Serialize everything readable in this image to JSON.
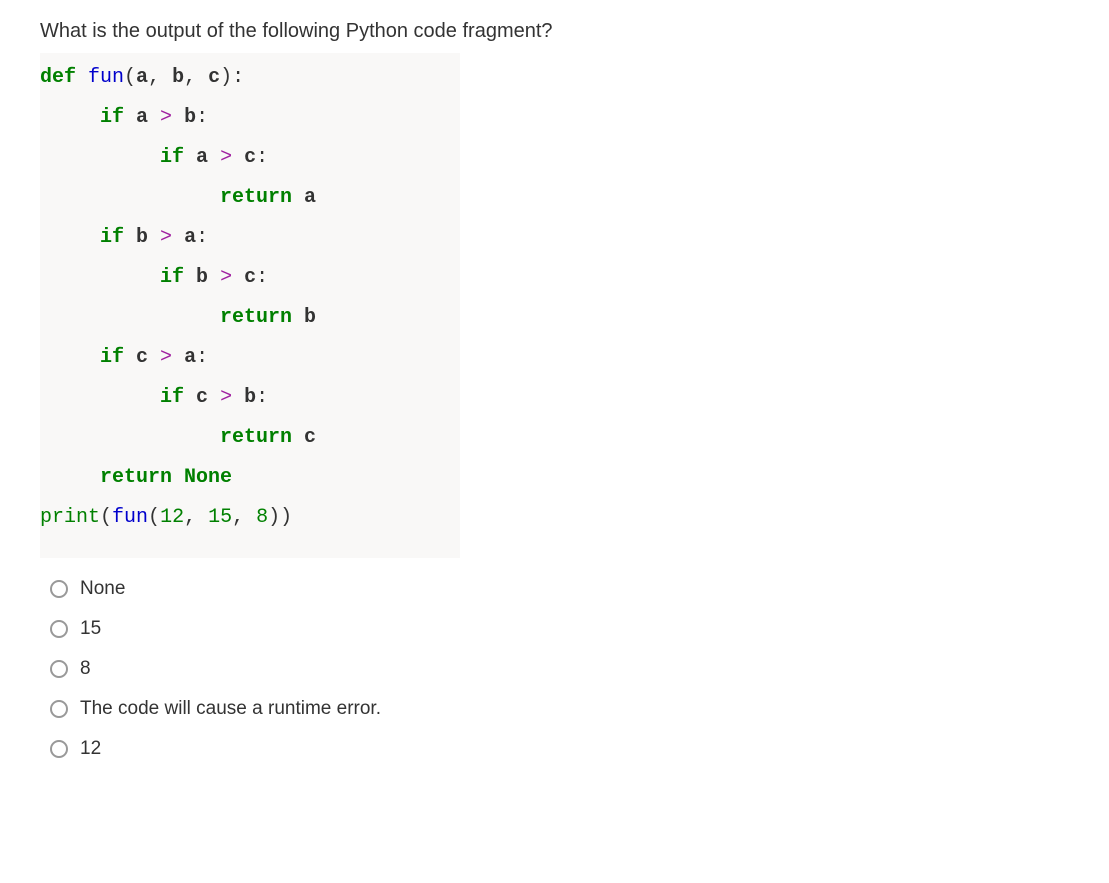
{
  "question": {
    "prompt": "What is the output of the following Python code fragment?"
  },
  "code": {
    "background": "#f9f8f7",
    "font_family": "Courier New",
    "font_size_pt": 15,
    "colors": {
      "keyword": "#008000",
      "function": "#0000cc",
      "operator": "#a020a0",
      "text": "#333333",
      "number": "#008000"
    },
    "lines": [
      {
        "indent": 0,
        "tokens": [
          {
            "t": "def ",
            "c": "keyword",
            "bold": true
          },
          {
            "t": "fun",
            "c": "function"
          },
          {
            "t": "(",
            "c": "punct"
          },
          {
            "t": "a",
            "c": "param",
            "bold": true
          },
          {
            "t": ", ",
            "c": "punct"
          },
          {
            "t": "b",
            "c": "param",
            "bold": true
          },
          {
            "t": ", ",
            "c": "punct"
          },
          {
            "t": "c",
            "c": "param",
            "bold": true
          },
          {
            "t": "):",
            "c": "punct"
          }
        ]
      },
      {
        "indent": 1,
        "tokens": [
          {
            "t": "if ",
            "c": "keyword",
            "bold": true
          },
          {
            "t": "a ",
            "c": "param",
            "bold": true
          },
          {
            "t": "> ",
            "c": "operator"
          },
          {
            "t": "b",
            "c": "param",
            "bold": true
          },
          {
            "t": ":",
            "c": "punct"
          }
        ]
      },
      {
        "indent": 2,
        "tokens": [
          {
            "t": "if ",
            "c": "keyword",
            "bold": true
          },
          {
            "t": "a ",
            "c": "param",
            "bold": true
          },
          {
            "t": "> ",
            "c": "operator"
          },
          {
            "t": "c",
            "c": "param",
            "bold": true
          },
          {
            "t": ":",
            "c": "punct"
          }
        ]
      },
      {
        "indent": 3,
        "tokens": [
          {
            "t": "return ",
            "c": "keyword",
            "bold": true
          },
          {
            "t": "a",
            "c": "param",
            "bold": true
          }
        ]
      },
      {
        "indent": 1,
        "tokens": [
          {
            "t": "if ",
            "c": "keyword",
            "bold": true
          },
          {
            "t": "b ",
            "c": "param",
            "bold": true
          },
          {
            "t": "> ",
            "c": "operator"
          },
          {
            "t": "a",
            "c": "param",
            "bold": true
          },
          {
            "t": ":",
            "c": "punct"
          }
        ]
      },
      {
        "indent": 2,
        "tokens": [
          {
            "t": "if ",
            "c": "keyword",
            "bold": true
          },
          {
            "t": "b ",
            "c": "param",
            "bold": true
          },
          {
            "t": "> ",
            "c": "operator"
          },
          {
            "t": "c",
            "c": "param",
            "bold": true
          },
          {
            "t": ":",
            "c": "punct"
          }
        ]
      },
      {
        "indent": 3,
        "tokens": [
          {
            "t": "return ",
            "c": "keyword",
            "bold": true
          },
          {
            "t": "b",
            "c": "param",
            "bold": true
          }
        ]
      },
      {
        "indent": 1,
        "tokens": [
          {
            "t": "if ",
            "c": "keyword",
            "bold": true
          },
          {
            "t": "c ",
            "c": "param",
            "bold": true
          },
          {
            "t": "> ",
            "c": "operator"
          },
          {
            "t": "a",
            "c": "param",
            "bold": true
          },
          {
            "t": ":",
            "c": "punct"
          }
        ]
      },
      {
        "indent": 2,
        "tokens": [
          {
            "t": "if ",
            "c": "keyword",
            "bold": true
          },
          {
            "t": "c ",
            "c": "param",
            "bold": true
          },
          {
            "t": "> ",
            "c": "operator"
          },
          {
            "t": "b",
            "c": "param",
            "bold": true
          },
          {
            "t": ":",
            "c": "punct"
          }
        ]
      },
      {
        "indent": 3,
        "tokens": [
          {
            "t": "return ",
            "c": "keyword",
            "bold": true
          },
          {
            "t": "c",
            "c": "param",
            "bold": true
          }
        ]
      },
      {
        "indent": 1,
        "tokens": [
          {
            "t": "return ",
            "c": "keyword",
            "bold": true
          },
          {
            "t": "None",
            "c": "keyword",
            "bold": true
          }
        ]
      },
      {
        "indent": 0,
        "tokens": []
      },
      {
        "indent": 0,
        "tokens": [
          {
            "t": "print",
            "c": "keyword"
          },
          {
            "t": "(",
            "c": "punct"
          },
          {
            "t": "fun",
            "c": "function"
          },
          {
            "t": "(",
            "c": "punct"
          },
          {
            "t": "12",
            "c": "number"
          },
          {
            "t": ", ",
            "c": "punct"
          },
          {
            "t": "15",
            "c": "number"
          },
          {
            "t": ", ",
            "c": "punct"
          },
          {
            "t": "8",
            "c": "number"
          },
          {
            "t": "))",
            "c": "punct"
          }
        ]
      }
    ]
  },
  "options": [
    {
      "label": "None"
    },
    {
      "label": "15"
    },
    {
      "label": "8"
    },
    {
      "label": "The code will cause a runtime error."
    },
    {
      "label": "12"
    }
  ]
}
